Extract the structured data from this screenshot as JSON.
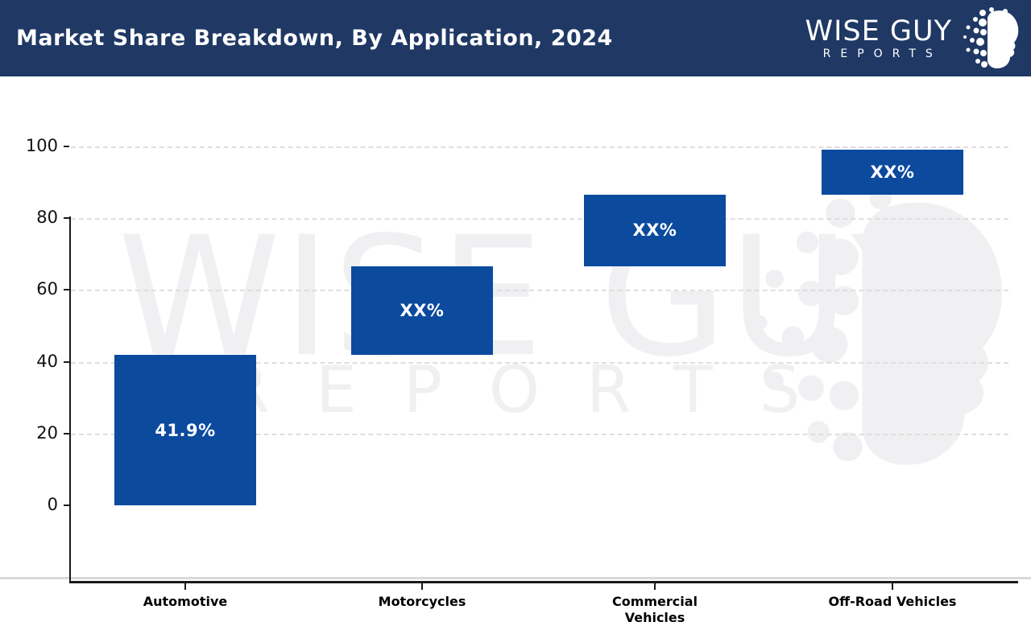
{
  "header": {
    "title": "Market Share Breakdown, By Application, 2024",
    "bg_color": "#1f3864",
    "logo": {
      "line1": "WISE GUY",
      "line2": "REPORTS"
    }
  },
  "watermark": {
    "line1": "WISE GUY",
    "line2": "REPORTS"
  },
  "chart_data": {
    "type": "bar",
    "subtype": "floating-segment-waterfall",
    "title": "Market Share Breakdown, By Application, 2024",
    "categories": [
      "Automotive",
      "Motorcycles",
      "Commercial\nVehicles",
      "Off-Road Vehicles"
    ],
    "segments": [
      {
        "category": "Automotive",
        "label": "41.9%",
        "start": 0,
        "end": 41.9
      },
      {
        "category": "Motorcycles",
        "label": "XX%",
        "start": 41.9,
        "end": 66.7
      },
      {
        "category": "Commercial Vehicles",
        "label": "XX%",
        "start": 66.7,
        "end": 86.6
      },
      {
        "category": "Off-Road Vehicles",
        "label": "XX%",
        "start": 86.6,
        "end": 99.2
      }
    ],
    "yticks": [
      0,
      20,
      40,
      60,
      80,
      100
    ],
    "ylim": [
      0,
      102
    ],
    "xlabel": "",
    "ylabel": "",
    "bar_color": "#0c4a9e",
    "bar_label_color": "#ffffff",
    "grid": "horizontal-dashed",
    "grid_color": "#dedede",
    "legend": "none"
  }
}
